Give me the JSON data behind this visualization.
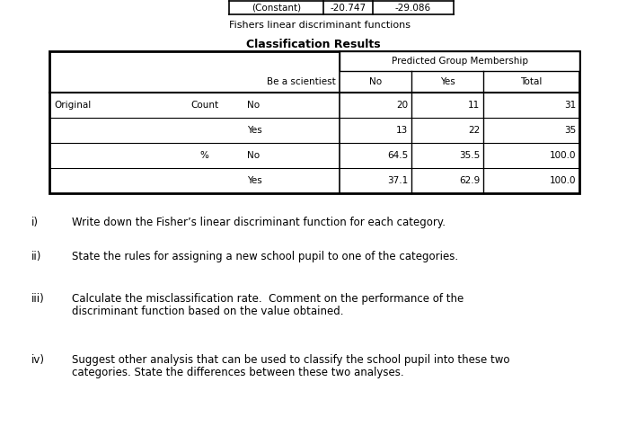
{
  "top_label": "Fishers linear discriminant functions",
  "top_table_header": "(Constant)",
  "top_values": [
    "-20.747",
    "-29.086"
  ],
  "classification_title": "Classification Results",
  "table": {
    "predicted_header": "Predicted Group Membership",
    "rows": [
      [
        "Original",
        "Count",
        "No",
        "20",
        "11",
        "31"
      ],
      [
        "",
        "",
        "Yes",
        "13",
        "22",
        "35"
      ],
      [
        "",
        "%",
        "No",
        "64.5",
        "35.5",
        "100.0"
      ],
      [
        "",
        "",
        "Yes",
        "37.1",
        "62.9",
        "100.0"
      ]
    ]
  },
  "questions": [
    {
      "label": "i)",
      "text": "Write down the Fisher’s linear discriminant function for each category."
    },
    {
      "label": "ii)",
      "text": "State the rules for assigning a new school pupil to one of the categories."
    },
    {
      "label": "iii)",
      "text1": "Calculate the misclassification rate.  Comment on the performance of the",
      "text2": "discriminant function based on the value obtained."
    },
    {
      "label": "iv)",
      "text1": "Suggest other analysis that can be used to classify the school pupil into these two",
      "text2": "categories. State the differences between these two analyses."
    }
  ],
  "font_family": "DejaVu Sans",
  "bg_color": "#ffffff",
  "text_color": "#000000"
}
